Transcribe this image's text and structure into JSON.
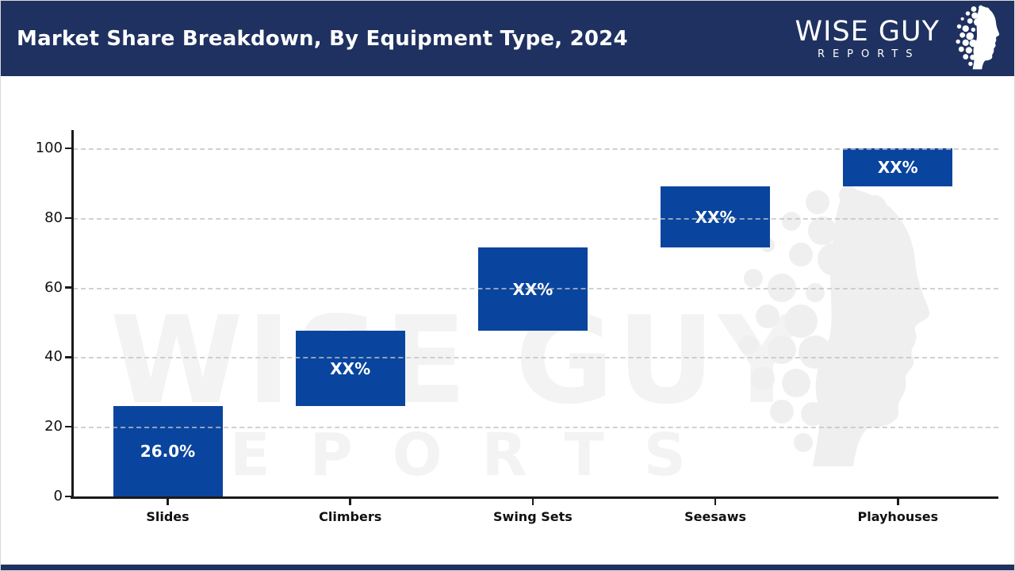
{
  "header": {
    "title": "Market Share Breakdown, By Equipment Type, 2024",
    "bg_color": "#1f3160",
    "logo": {
      "line1": "WISE GUY",
      "line2": "REPORTS"
    }
  },
  "watermark": {
    "line1": "WISE GUY",
    "line2": "REPORTS"
  },
  "footer": {
    "bg_color": "#1f3160"
  },
  "chart_data": {
    "type": "bar",
    "subtype": "waterfall",
    "title": "Market Share Breakdown, By Equipment Type, 2024",
    "categories": [
      "Slides",
      "Climbers",
      "Swing Sets",
      "Seesaws",
      "Playhouses"
    ],
    "segments": [
      {
        "category": "Slides",
        "start": 0,
        "end": 26,
        "value_label": "26.0%"
      },
      {
        "category": "Climbers",
        "start": 26,
        "end": 47.5,
        "value_label": "XX%"
      },
      {
        "category": "Swing Sets",
        "start": 47.5,
        "end": 71.5,
        "value_label": "XX%"
      },
      {
        "category": "Seesaws",
        "start": 71.5,
        "end": 89,
        "value_label": "XX%"
      },
      {
        "category": "Playhouses",
        "start": 89,
        "end": 100,
        "value_label": "XX%"
      }
    ],
    "xlabel": "",
    "ylabel": "",
    "yticks": [
      0,
      20,
      40,
      60,
      80,
      100
    ],
    "ylim": [
      0,
      105
    ],
    "grid": "horizontal dashed, drawn over bars",
    "legend": "none",
    "bar_color": "#09459e",
    "axis_color": "#1a1a1a",
    "gridline_color": "#c9c9c9",
    "value_label_color": "#ffffff"
  }
}
